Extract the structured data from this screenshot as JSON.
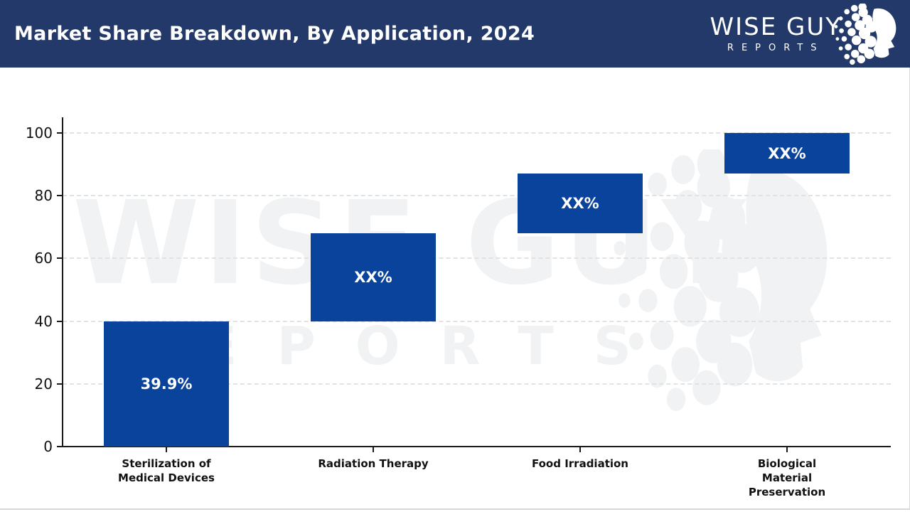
{
  "header": {
    "title": "Market Share Breakdown, By Application, 2024",
    "logo": {
      "wordmark": "WISE GUY",
      "subtext": "REPORTS"
    }
  },
  "watermark": {
    "line1": "WISE GUY",
    "line2": "REPORTS"
  },
  "chart_data": {
    "type": "bar",
    "subtype": "waterfall",
    "title": "Market Share Breakdown, By Application, 2024",
    "categories": [
      "Sterilization of Medical Devices",
      "Radiation Therapy",
      "Food Irradiation",
      "Biological Material Preservation"
    ],
    "category_lines": [
      [
        "Sterilization of",
        "Medical Devices"
      ],
      [
        "Radiation Therapy"
      ],
      [
        "Food Irradiation"
      ],
      [
        "Biological",
        "Material",
        "Preservation"
      ]
    ],
    "segments": [
      {
        "category": "Sterilization of Medical Devices",
        "start": 0,
        "end": 39.9,
        "label": "39.9%"
      },
      {
        "category": "Radiation Therapy",
        "start": 40,
        "end": 68,
        "label": "XX%"
      },
      {
        "category": "Food Irradiation",
        "start": 68,
        "end": 87,
        "label": "XX%"
      },
      {
        "category": "Biological Material Preservation",
        "start": 87,
        "end": 100,
        "label": "XX%"
      }
    ],
    "xlabel": "",
    "ylabel": "",
    "ylim": [
      0,
      100
    ],
    "yticks": [
      0,
      20,
      40,
      60,
      80,
      100
    ],
    "grid": "horizontal-dashed",
    "legend": "none",
    "colors": {
      "bar": "#0A439B",
      "bar_label": "#FFFFFF",
      "grid": "#E2E2E2",
      "axis": "#1A1A1A",
      "header_bg": "#22396A",
      "watermark": "#F0F2F4"
    }
  }
}
